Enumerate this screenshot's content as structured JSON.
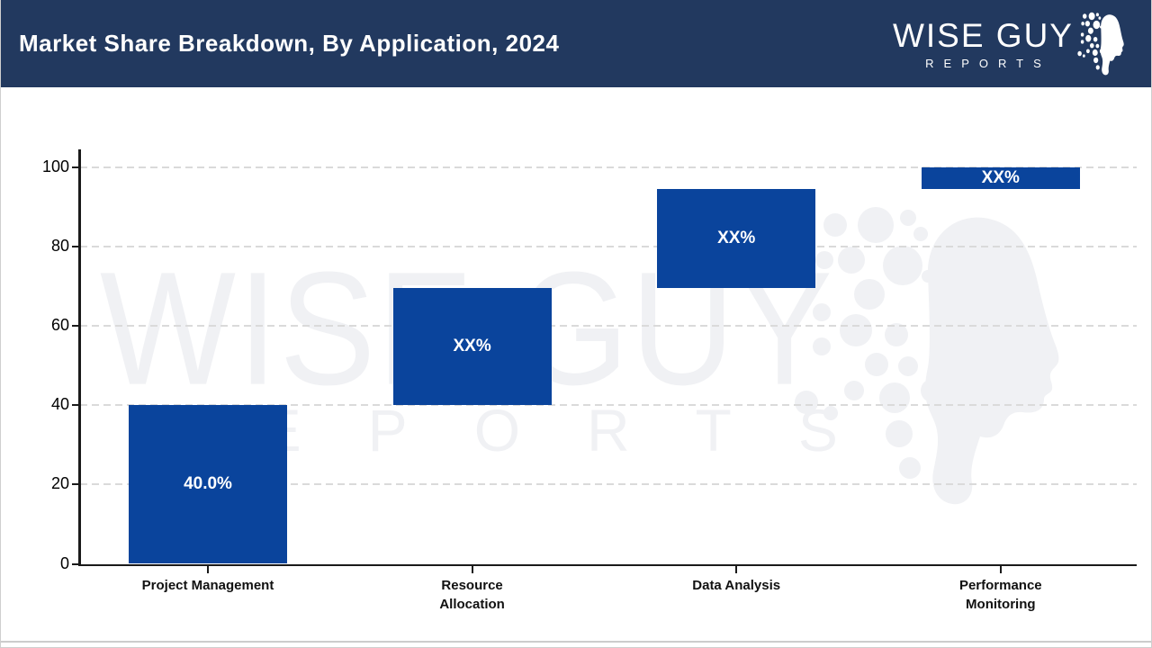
{
  "header": {
    "logo": {
      "wordmark": "WISE GUY",
      "subtext": "REPORTS"
    }
  },
  "watermark": {
    "wordmark": "WISE GUY",
    "subtext": "REPORTS"
  },
  "chart_data": {
    "type": "bar",
    "variant": "waterfall-stacked",
    "title": "Market Share Breakdown, By Application, 2024",
    "categories": [
      "Project Management",
      "Resource\nAllocation",
      "Data Analysis",
      "Performance\nMonitoring"
    ],
    "segments": [
      {
        "category": "Project Management",
        "start": 0,
        "end": 40,
        "label": "40.0%"
      },
      {
        "category": "Resource Allocation",
        "start": 40,
        "end": 69.5,
        "label": "XX%"
      },
      {
        "category": "Data Analysis",
        "start": 69.5,
        "end": 94.5,
        "label": "XX%"
      },
      {
        "category": "Performance Monitoring",
        "start": 94.5,
        "end": 100,
        "label": "XX%"
      }
    ],
    "xlabel": "",
    "ylabel": "",
    "ylim": [
      0,
      107
    ],
    "yticks": [
      0,
      20,
      40,
      60,
      80,
      100
    ],
    "grid": {
      "horizontal": true,
      "style": "dashed",
      "color": "#dadada"
    },
    "legend": "none",
    "colors": {
      "bar": "#0a449c",
      "bar_label": "#ffffff",
      "header_background": "#22395f",
      "axis": "#1a1a1a",
      "watermark": "#f0f1f4"
    }
  }
}
